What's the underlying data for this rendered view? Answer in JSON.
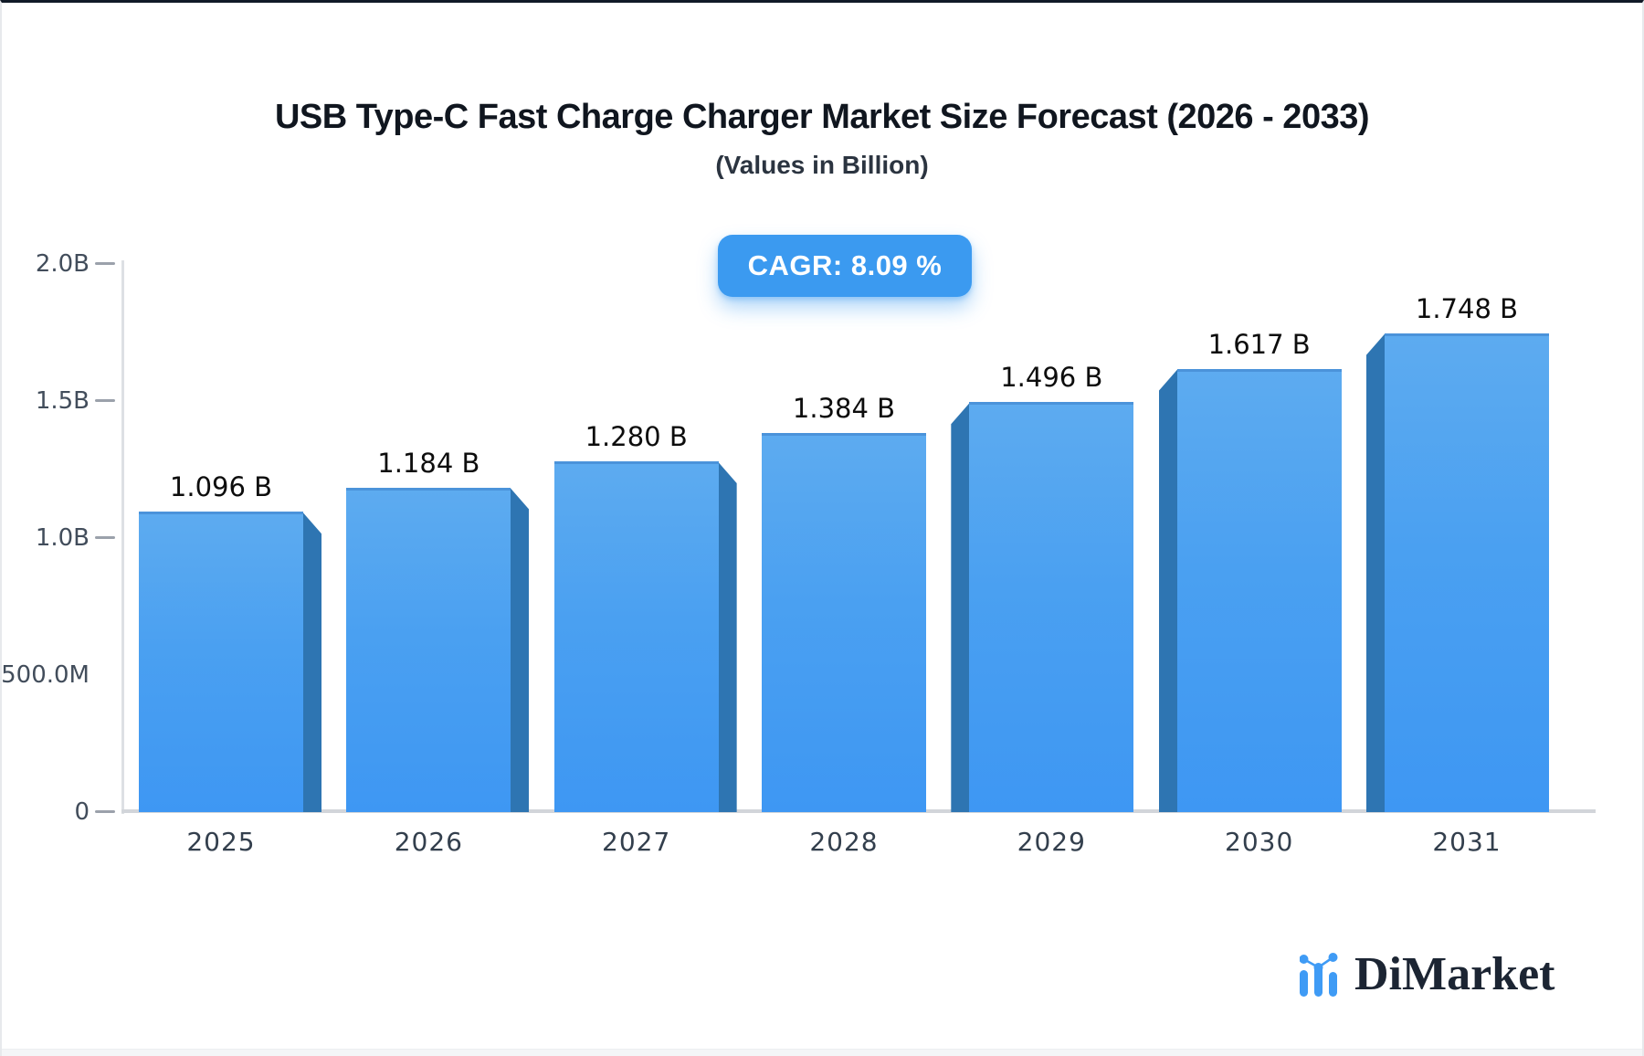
{
  "title": "USB Type-C Fast Charge Charger Market Size Forecast (2026 - 2033)",
  "subtitle": "(Values in Billion)",
  "badge": {
    "label": "CAGR: 8.09 %"
  },
  "brand": {
    "name": "DiMarket",
    "icon": "mini-bar-chart-icon"
  },
  "colors": {
    "bar_top": "#5dabf0",
    "bar_bottom": "#3e97f3",
    "bar_side": "#2e75b2",
    "badge_bg": "#3b9af0",
    "axis_line": "#dde0e4",
    "baseline": "#d2d5da",
    "logo_blue": "#3f9bf5",
    "logo_navy": "#1c2533"
  },
  "chart_data": {
    "type": "bar",
    "title": "USB Type-C Fast Charge Charger Market Size Forecast (2026 - 2033)",
    "subtitle": "(Values in Billion)",
    "categories": [
      "2025",
      "2026",
      "2027",
      "2028",
      "2029",
      "2030",
      "2031"
    ],
    "values": [
      1.096,
      1.184,
      1.28,
      1.384,
      1.496,
      1.617,
      1.748
    ],
    "value_labels": [
      "1.096 B",
      "1.184 B",
      "1.280 B",
      "1.384 B",
      "1.496 B",
      "1.617 B",
      "1.748 B"
    ],
    "unit": "Billion",
    "xlabel": "",
    "ylabel": "",
    "ylim": [
      0,
      2.0
    ],
    "grid": false,
    "legend": false,
    "y_ticks": [
      {
        "label": "2.0B",
        "value": 2.0,
        "dash": true
      },
      {
        "label": "1.5B",
        "value": 1.5,
        "dash": true
      },
      {
        "label": "1.0B",
        "value": 1.0,
        "dash": true
      },
      {
        "label": "500.0M",
        "value": 0.5,
        "dash": false
      },
      {
        "label": "0",
        "value": 0.0,
        "dash": true
      }
    ]
  }
}
